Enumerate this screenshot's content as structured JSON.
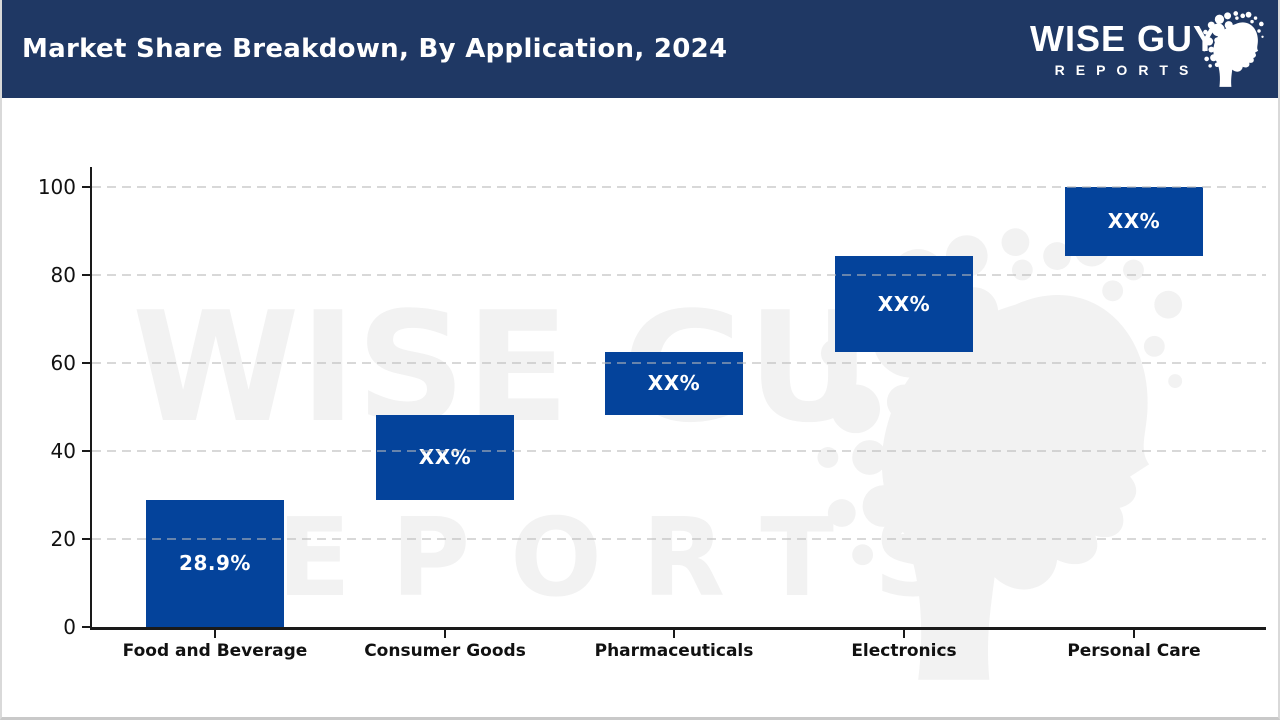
{
  "header": {
    "title": "Market Share Breakdown, By Application, 2024",
    "logo": {
      "line1": "WISE GUY",
      "line2": "REPORTS",
      "face_icon": "dotted-head-profile-icon"
    }
  },
  "watermark": {
    "line1": "WISE GUY",
    "line2": "REPORTS",
    "face_icon": "dotted-head-profile-icon"
  },
  "colors": {
    "header_bg": "#1f3864",
    "bar": "#04439b",
    "bar_label": "#ffffff",
    "axis": "#1a1a1a",
    "grid": "rgba(185,185,185,0.55)",
    "watermark": "#f2f2f2",
    "tick_text": "#111111"
  },
  "chart_data": {
    "type": "bar",
    "subtype": "waterfall",
    "title": "Market Share Breakdown, By Application, 2024",
    "categories": [
      "Food and Beverage",
      "Consumer Goods",
      "Pharmaceuticals",
      "Electronics",
      "Personal Care"
    ],
    "segments": [
      {
        "category": "Food and Beverage",
        "start": 0,
        "end": 28.9,
        "label": "28.9%"
      },
      {
        "category": "Consumer Goods",
        "start": 28.9,
        "end": 48.2,
        "label": "XX%"
      },
      {
        "category": "Pharmaceuticals",
        "start": 48.2,
        "end": 62.6,
        "label": "XX%"
      },
      {
        "category": "Electronics",
        "start": 62.6,
        "end": 84.4,
        "label": "XX%"
      },
      {
        "category": "Personal Care",
        "start": 84.4,
        "end": 100,
        "label": "XX%"
      }
    ],
    "xlabel": "",
    "ylabel": "",
    "ylim": [
      0,
      100
    ],
    "yticks": [
      0,
      20,
      40,
      60,
      80,
      100
    ],
    "grid": "horizontal-dashed",
    "legend": "none"
  }
}
